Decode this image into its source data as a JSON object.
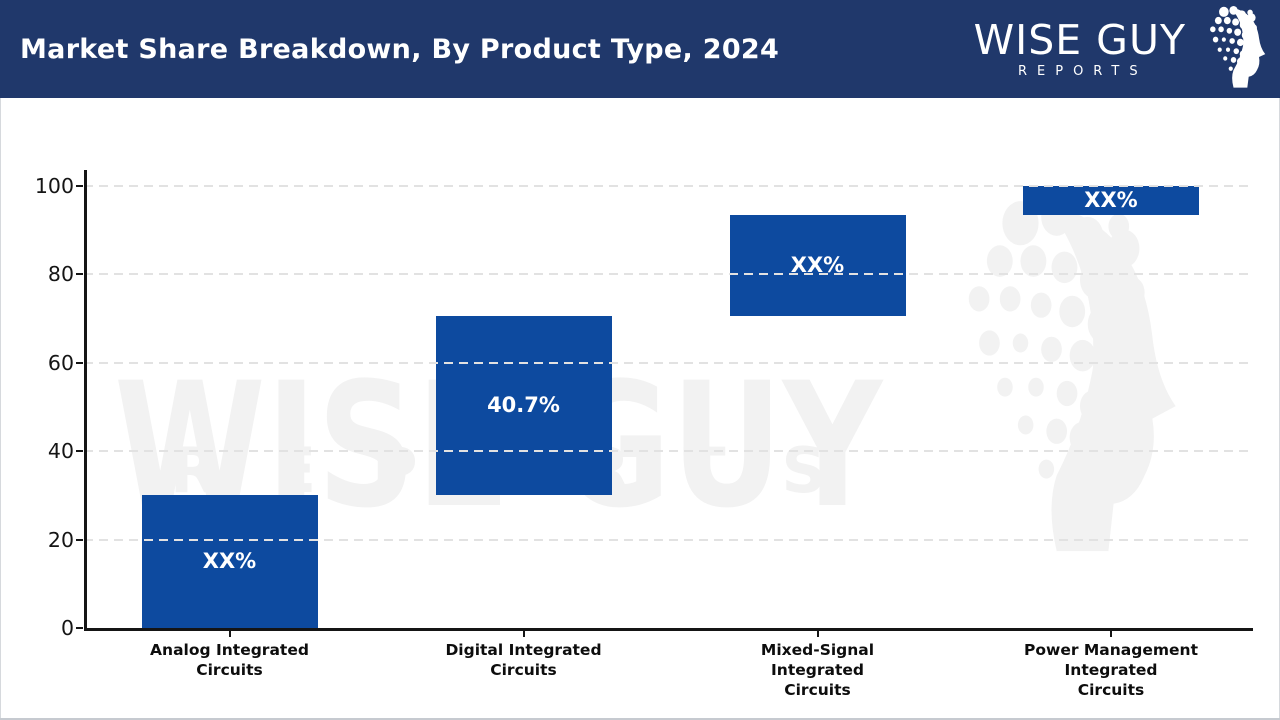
{
  "header": {
    "title": "Market Share Breakdown, By Product Type, 2024",
    "logo": {
      "name": "WISE GUY",
      "subtitle": "REPORTS"
    }
  },
  "watermark": {
    "name": "WISE GUY",
    "subtitle": "REPORTS"
  },
  "chart_data": {
    "type": "bar",
    "subtype": "waterfall_breakdown",
    "title": "Market Share Breakdown, By Product Type, 2024",
    "categories": [
      "Analog Integrated Circuits",
      "Digital Integrated Circuits",
      "Mixed-Signal Integrated Circuits",
      "Power Management Integrated Circuits"
    ],
    "category_label_lines": [
      [
        "Analog Integrated",
        "Circuits"
      ],
      [
        "Digital Integrated",
        "Circuits"
      ],
      [
        "Mixed-Signal",
        "Integrated",
        "Circuits"
      ],
      [
        "Power Management",
        "Integrated",
        "Circuits"
      ]
    ],
    "segments": [
      {
        "category": "Analog Integrated Circuits",
        "label": "XX%",
        "start": 0,
        "end": 30,
        "value_est": 30
      },
      {
        "category": "Digital Integrated Circuits",
        "label": "40.7%",
        "start": 30,
        "end": 70.7,
        "value": 40.7
      },
      {
        "category": "Mixed-Signal Integrated Circuits",
        "label": "XX%",
        "start": 70.7,
        "end": 93.4,
        "value_est": 22.7
      },
      {
        "category": "Power Management Integrated Circuits",
        "label": "XX%",
        "start": 93.4,
        "end": 100,
        "value_est": 6.6
      }
    ],
    "ylim": [
      0,
      100
    ],
    "yticks": [
      0,
      20,
      40,
      60,
      80,
      100
    ],
    "grid": "horizontal_dashed",
    "legend": "none",
    "colors": {
      "bar": "#0D4A9F",
      "value_label": "#FFFFFF",
      "header_bg": "#20386B",
      "header_text": "#FFFFFF",
      "axis": "#151515",
      "gridline": "#E2E2E2",
      "watermark": "#F2F2F2",
      "tick_label": "#151515"
    }
  }
}
